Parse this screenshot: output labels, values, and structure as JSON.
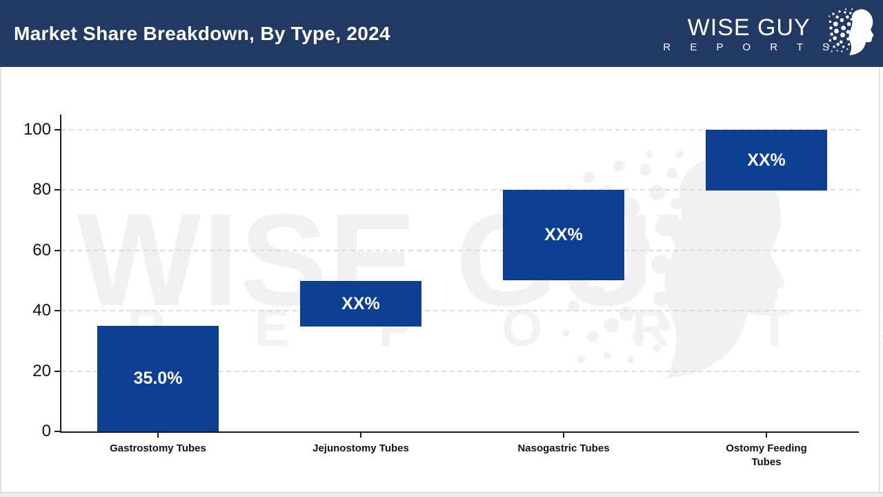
{
  "header": {
    "title": "Market Share Breakdown, By Type, 2024",
    "logo": {
      "line1": "WISE GUY",
      "line2": "R E P O R T S"
    }
  },
  "watermark": {
    "line1": "WISE GUY",
    "line2": "R E P O R T S"
  },
  "chart_data": {
    "type": "bar",
    "subtype": "waterfall",
    "title": "Market Share Breakdown, By Type, 2024",
    "categories": [
      "Gastrostomy Tubes",
      "Jejunostomy Tubes",
      "Nasogastric Tubes",
      "Ostomy Feeding Tubes"
    ],
    "bars": [
      {
        "category": "Gastrostomy Tubes",
        "start": 0,
        "end": 35,
        "label": "35.0%"
      },
      {
        "category": "Jejunostomy Tubes",
        "start": 35,
        "end": 50,
        "label": "XX%"
      },
      {
        "category": "Nasogastric Tubes",
        "start": 50,
        "end": 80,
        "label": "XX%"
      },
      {
        "category": "Ostomy Feeding Tubes",
        "start": 80,
        "end": 100,
        "label": "XX%"
      }
    ],
    "yticks": [
      0,
      20,
      40,
      60,
      80,
      100
    ],
    "ylim": [
      0,
      105
    ],
    "grid": "dashed-horizontal",
    "legend": "none",
    "colors": {
      "bar": "#0c3e92",
      "header_bg": "#223a63",
      "grid": "#dcdcdc",
      "axis": "#1a1a1a",
      "bar_label": "#ffffff",
      "watermark": "#f1f1f1"
    }
  }
}
